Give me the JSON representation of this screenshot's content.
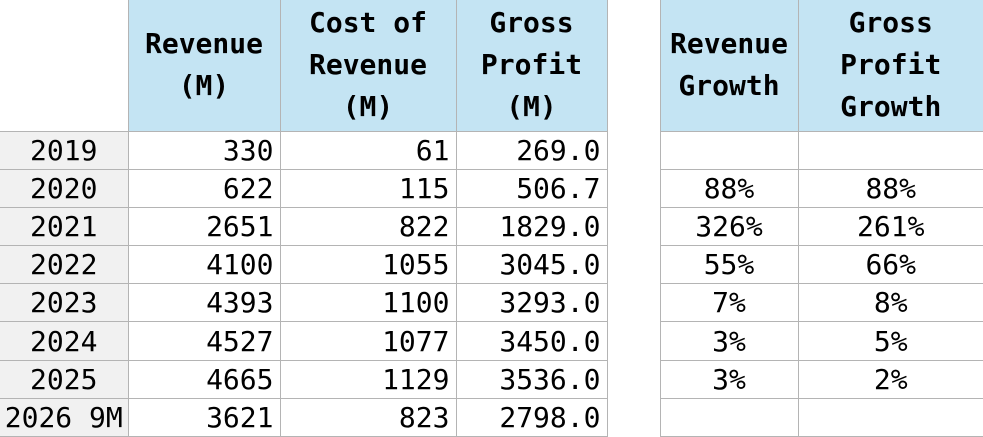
{
  "chart_data": {
    "type": "table",
    "title": "",
    "columns": [
      {
        "id": "year",
        "label": ""
      },
      {
        "id": "revenue_m",
        "label": "Revenue\n(M)"
      },
      {
        "id": "cost_of_revenue_m",
        "label": "Cost of\nRevenue\n(M)"
      },
      {
        "id": "gross_profit_m",
        "label": "Gross\nProfit\n(M)"
      },
      {
        "id": "spacer",
        "label": ""
      },
      {
        "id": "revenue_growth",
        "label": "Revenue\nGrowth"
      },
      {
        "id": "gross_profit_growth",
        "label": "Gross\nProfit\nGrowth"
      }
    ],
    "rows": [
      [
        "2019",
        "330",
        "61",
        "269.0",
        "",
        "",
        ""
      ],
      [
        "2020",
        "622",
        "115",
        "506.7",
        "",
        "88%",
        "88%"
      ],
      [
        "2021",
        "2651",
        "822",
        "1829.0",
        "",
        "326%",
        "261%"
      ],
      [
        "2022",
        "4100",
        "1055",
        "3045.0",
        "",
        "55%",
        "66%"
      ],
      [
        "2023",
        "4393",
        "1100",
        "3293.0",
        "",
        "7%",
        "8%"
      ],
      [
        "2024",
        "4527",
        "1077",
        "3450.0",
        "",
        "3%",
        "5%"
      ],
      [
        "2025",
        "4665",
        "1129",
        "3536.0",
        "",
        "3%",
        "2%"
      ],
      [
        "2026 9M",
        "3621",
        "823",
        "2798.0",
        "",
        "",
        ""
      ]
    ],
    "colors": {
      "header_bg": "#c4e4f3",
      "index_bg": "#f1f1f1",
      "border": "#b4b4b4",
      "text": "#000000"
    }
  }
}
